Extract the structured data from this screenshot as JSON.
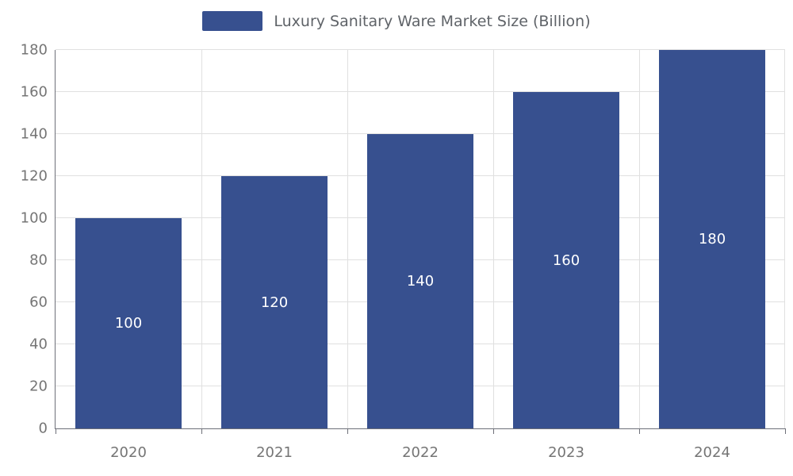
{
  "legend": {
    "label": "Luxury Sanitary Ware Market Size (Billion)"
  },
  "chart_data": {
    "type": "bar",
    "title": "Luxury Sanitary Ware Market Size (Billion)",
    "categories": [
      "2020",
      "2021",
      "2022",
      "2023",
      "2024"
    ],
    "values": [
      100,
      120,
      140,
      160,
      180
    ],
    "xlabel": "",
    "ylabel": "",
    "ylim": [
      0,
      180
    ],
    "ytick_step": 20,
    "grid": true,
    "legend_position": "top",
    "colors": {
      "bar": "#37508F",
      "bar_label_text": "#ffffff",
      "axis_text": "#757575",
      "gridline": "#e0e0e0",
      "axis_line": "#6e7079",
      "legend_text": "#5f6368",
      "background": "#ffffff"
    }
  }
}
